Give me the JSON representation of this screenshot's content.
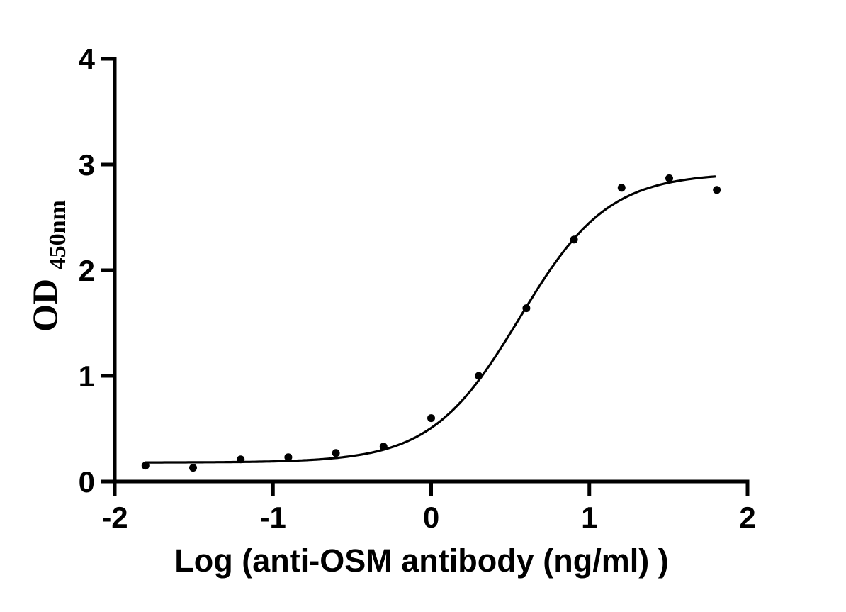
{
  "figure": {
    "background_color": "#ffffff",
    "ink_color": "#000000"
  },
  "chart_data": {
    "type": "scatter",
    "title": "",
    "xlabel": "Log (anti-OSM antibody (ng/ml) )",
    "ylabel": {
      "main": "OD",
      "sub": "450nm"
    },
    "x_ticks": [
      -2,
      -1,
      0,
      1,
      2
    ],
    "y_ticks": [
      0,
      1,
      2,
      3,
      4
    ],
    "xlim": [
      -2,
      2
    ],
    "ylim": [
      0,
      4
    ],
    "grid": false,
    "legend": "none",
    "marker": {
      "shape": "circle",
      "color": "#000000"
    },
    "points": [
      {
        "x": -1.806,
        "y": 0.15
      },
      {
        "x": -1.505,
        "y": 0.13
      },
      {
        "x": -1.204,
        "y": 0.21
      },
      {
        "x": -0.903,
        "y": 0.23
      },
      {
        "x": -0.602,
        "y": 0.27
      },
      {
        "x": -0.301,
        "y": 0.33
      },
      {
        "x": 0.0,
        "y": 0.6
      },
      {
        "x": 0.301,
        "y": 1.0
      },
      {
        "x": 0.602,
        "y": 1.64
      },
      {
        "x": 0.903,
        "y": 2.29
      },
      {
        "x": 1.204,
        "y": 2.78
      },
      {
        "x": 1.505,
        "y": 2.87
      },
      {
        "x": 1.806,
        "y": 2.76
      }
    ],
    "fit_curve": {
      "model": "four-parameter-logistic",
      "bottom": 0.18,
      "top": 2.92,
      "log_ec50": 0.56,
      "hill_slope": 1.55,
      "x_start": -1.806,
      "x_end": 1.806,
      "color": "#000000"
    }
  }
}
